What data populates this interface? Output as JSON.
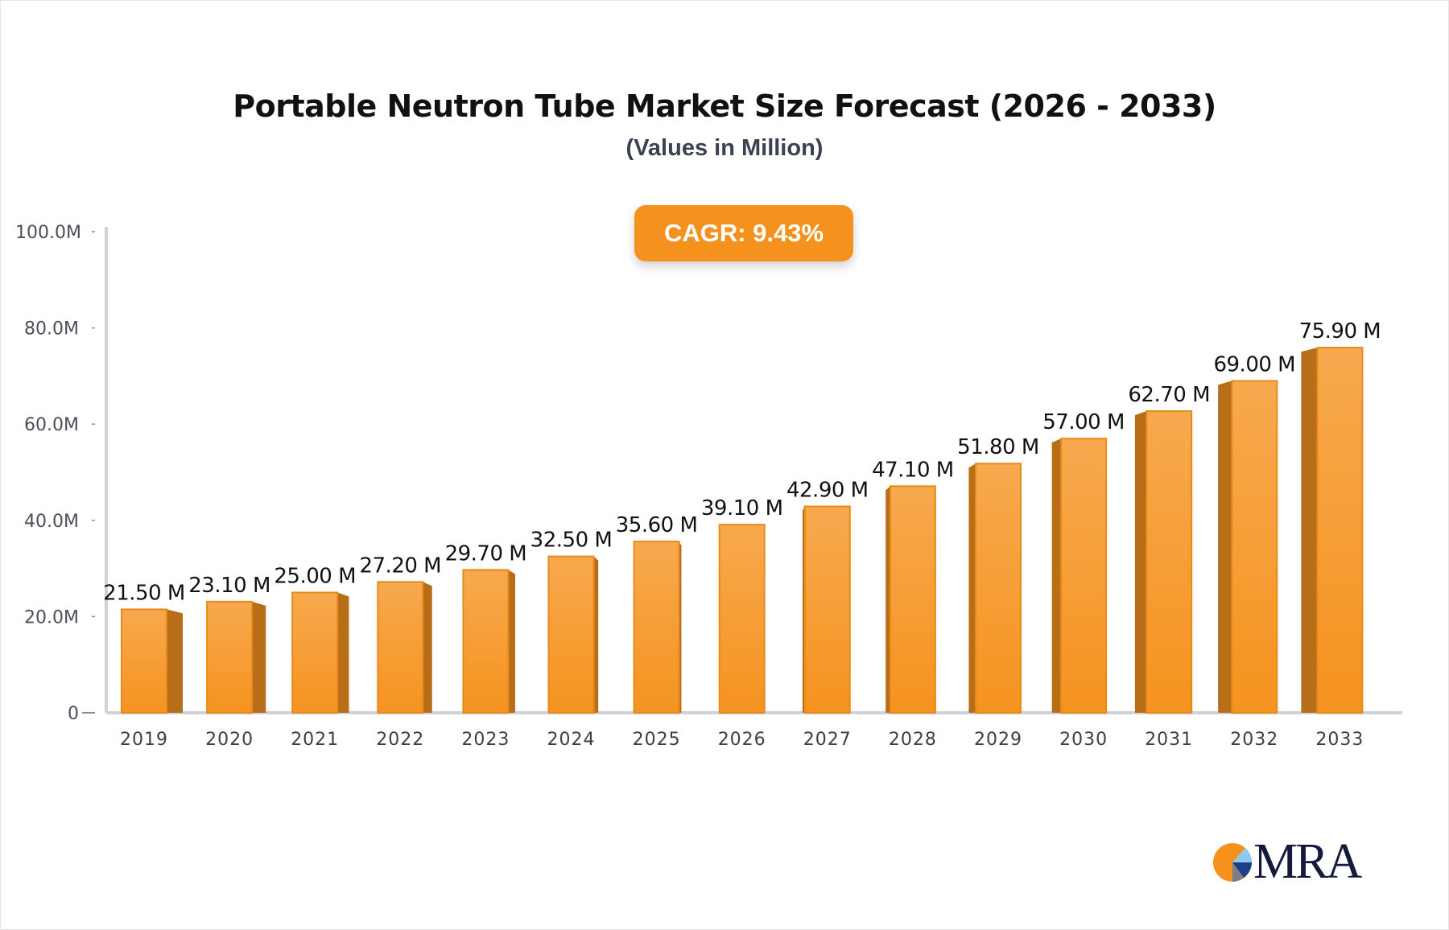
{
  "chart_data": {
    "type": "bar",
    "title": "Portable Neutron Tube Market Size Forecast (2026 - 2033)",
    "subtitle": "(Values in Million)",
    "annotation": "CAGR: 9.43%",
    "categories": [
      "2019",
      "2020",
      "2021",
      "2022",
      "2023",
      "2024",
      "2025",
      "2026",
      "2027",
      "2028",
      "2029",
      "2030",
      "2031",
      "2032",
      "2033"
    ],
    "values": [
      21.5,
      23.1,
      25.0,
      27.2,
      29.7,
      32.5,
      35.6,
      39.1,
      42.9,
      47.1,
      51.8,
      57.0,
      62.7,
      69.0,
      75.9
    ],
    "data_labels": [
      "21.50 M",
      "23.10 M",
      "25.00 M",
      "27.20 M",
      "29.70 M",
      "32.50 M",
      "35.60 M",
      "39.10 M",
      "42.90 M",
      "47.10 M",
      "51.80 M",
      "57.00 M",
      "62.70 M",
      "69.00 M",
      "75.90 M"
    ],
    "y_ticks": [
      0,
      20,
      40,
      60,
      80,
      100
    ],
    "y_tick_labels": [
      "0",
      "20.0M",
      "40.0M",
      "60.0M",
      "80.0M",
      "100.0M"
    ],
    "ylim": [
      0,
      100
    ],
    "xlabel": "",
    "ylabel": "",
    "grid": false,
    "colors": {
      "bar_front": "#f5a040",
      "bar_side": "#b86d18",
      "axis": "#d0d2d8",
      "badge": "#f5921e"
    }
  },
  "logo": {
    "text": "MRA"
  }
}
